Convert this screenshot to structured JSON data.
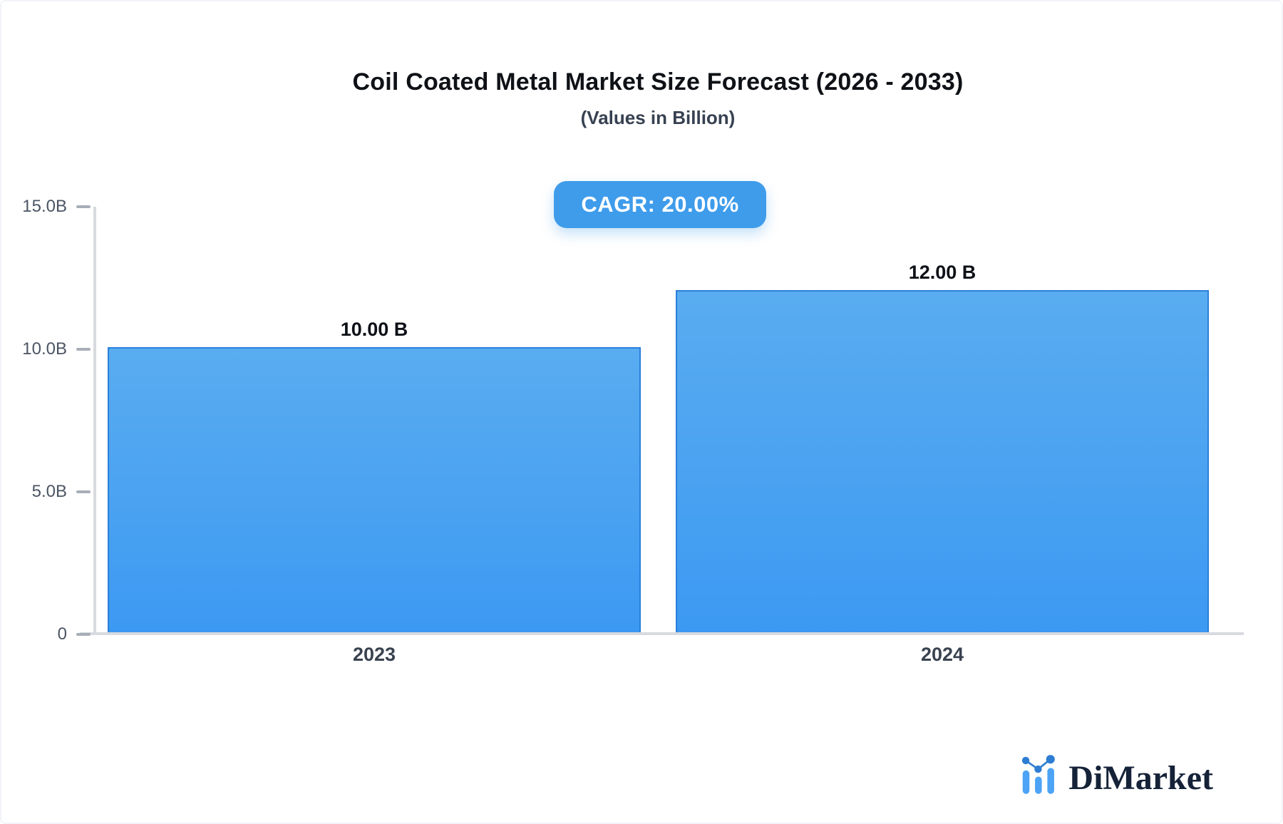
{
  "header": {
    "title": "Coil Coated Metal Market Size Forecast (2026 - 2033)",
    "subtitle": "(Values in Billion)",
    "cagr_badge": "CAGR: 20.00%"
  },
  "chart_data": {
    "type": "bar",
    "title": "Coil Coated Metal Market Size Forecast (2026 - 2033)",
    "subtitle": "(Values in Billion)",
    "categories": [
      "2023",
      "2024"
    ],
    "values": [
      10.0,
      12.0
    ],
    "value_labels": [
      "10.00 B",
      "12.00 B"
    ],
    "unit": "Billion",
    "ylim": [
      0,
      15
    ],
    "yticks": [
      "15.0B",
      "10.0B",
      "5.0B",
      "0"
    ],
    "grid": false,
    "legend": false,
    "annotations": [
      "CAGR: 20.00%"
    ],
    "colors": {
      "bar_fill_top": "#59acf0",
      "bar_fill_bottom": "#3c99f2",
      "bar_border": "#2b80da",
      "badge_bg": "#3f9ceb",
      "axis_line": "#d7dade",
      "tick_text": "#4b5563",
      "value_text": "#0d1117",
      "logo_navy": "#152238",
      "logo_blue": "#4da3f5"
    }
  },
  "footer": {
    "logo_text": "DiMarket"
  }
}
